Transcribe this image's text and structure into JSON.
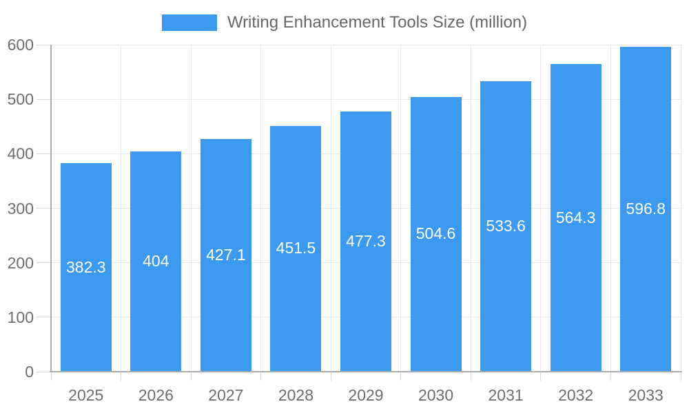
{
  "legend": {
    "label": "Writing Enhancement Tools Size (million)"
  },
  "colors": {
    "bar": "#3b99f0",
    "grid": "#e8e8e8",
    "axis": "#ababab",
    "tick": "#d6d6d6",
    "axis_text": "#6d6d6d",
    "legend_text": "#666666",
    "value_label_text": "#ffffff"
  },
  "chart_data": {
    "type": "bar",
    "title": "Writing Enhancement Tools Size (million)",
    "categories": [
      "2025",
      "2026",
      "2027",
      "2028",
      "2029",
      "2030",
      "2031",
      "2032",
      "2033"
    ],
    "values": [
      382.3,
      404,
      427.1,
      451.5,
      477.3,
      504.6,
      533.6,
      564.3,
      596.8
    ],
    "xlabel": "",
    "ylabel": "",
    "ylim": [
      0,
      600
    ],
    "yticks": [
      0,
      100,
      200,
      300,
      400,
      500,
      600
    ],
    "grid": true,
    "legend_position": "top",
    "value_labels": "inside-center"
  }
}
